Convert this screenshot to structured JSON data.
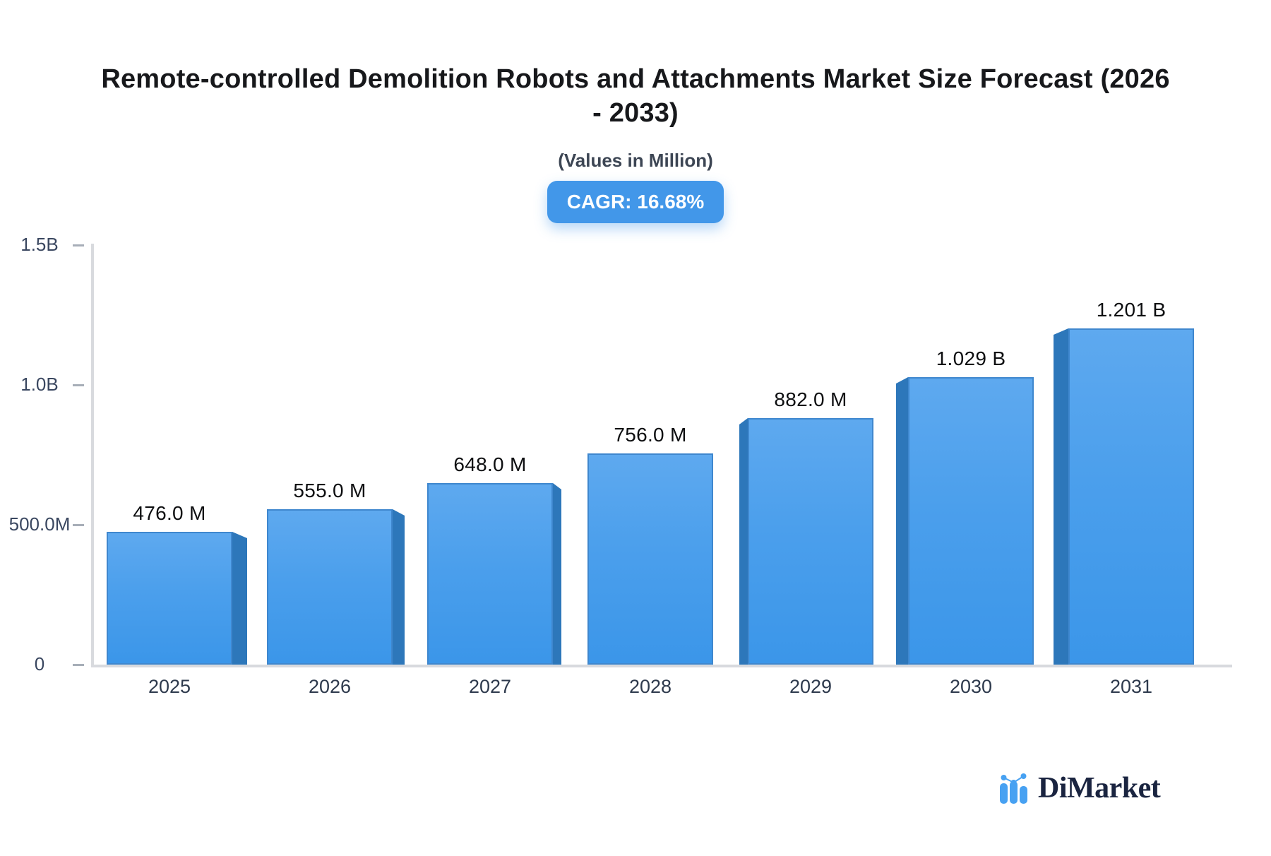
{
  "header": {
    "title_line1": "Remote-controlled Demolition Robots and Attachments Market Size Forecast (2026",
    "title_line2": "- 2033)",
    "subtitle": "(Values in Million)",
    "badge": "CAGR: 16.68%"
  },
  "chart_data": {
    "type": "bar",
    "title": "Remote-controlled Demolition Robots and Attachments Market Size Forecast (2026 - 2033)",
    "subtitle": "(Values in Million)",
    "cagr": "16.68%",
    "unit": "Million",
    "categories": [
      "2025",
      "2026",
      "2027",
      "2028",
      "2029",
      "2030",
      "2031"
    ],
    "values": [
      476,
      555,
      648,
      756,
      882,
      1029,
      1201
    ],
    "value_labels": [
      "476.0 M",
      "555.0 M",
      "648.0 M",
      "756.0 M",
      "882.0 M",
      "1.029 B",
      "1.201 B"
    ],
    "y_ticks": [
      {
        "label": "1.5B",
        "value": 1500
      },
      {
        "label": "1.0B",
        "value": 1000
      },
      {
        "label": "500.0M",
        "value": 500
      },
      {
        "label": "0",
        "value": 0
      }
    ],
    "ylim": [
      0,
      1500
    ],
    "grid": false,
    "legend": false,
    "bar_color": "#459ae9",
    "bar_side_color": "#2d77ba",
    "axis_color": "#d8dade",
    "badge_color": "#4297e9"
  },
  "logo": {
    "text": "DiMarket"
  }
}
